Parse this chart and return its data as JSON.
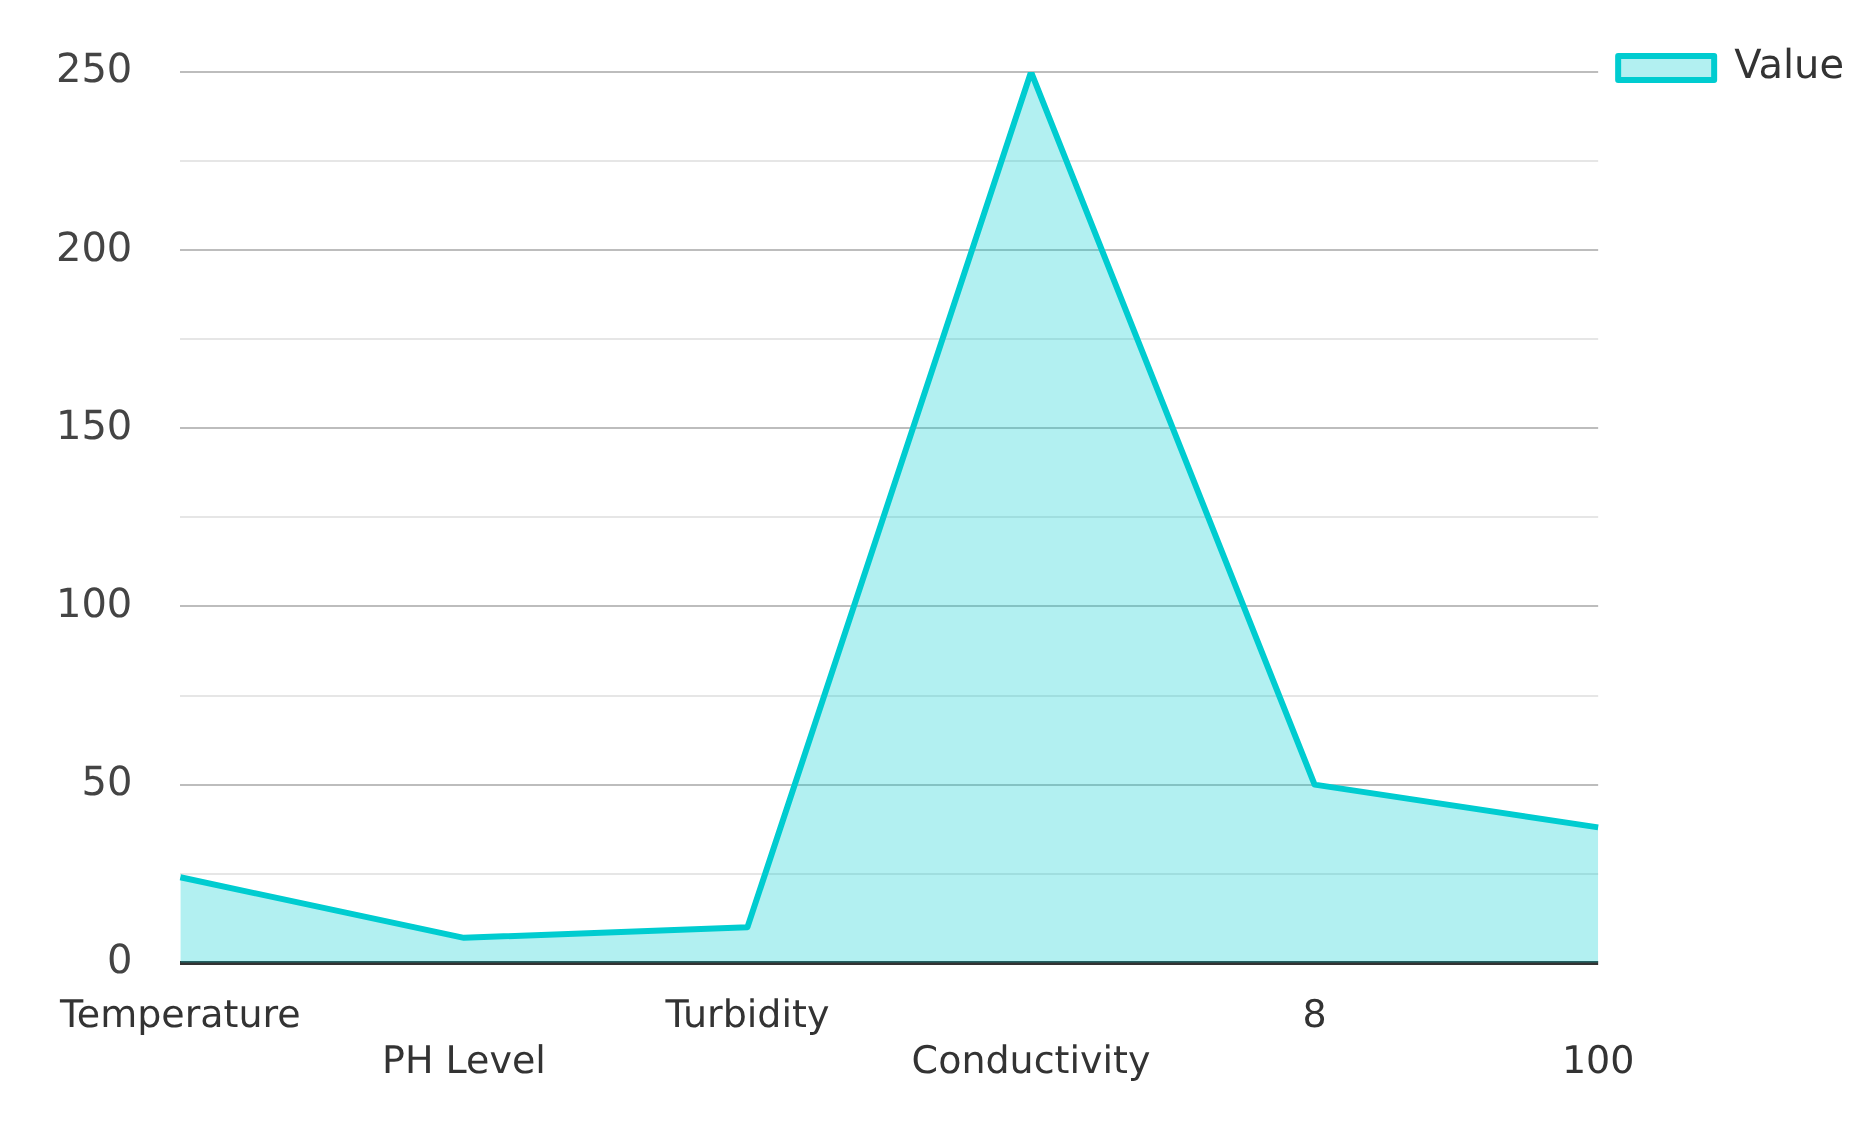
{
  "chart_data": {
    "type": "area",
    "categories": [
      "Temperature",
      "PH Level",
      "Turbidity",
      "Conductivity",
      "8",
      "100"
    ],
    "series": [
      {
        "name": "Value",
        "color": "#00ccd0",
        "values": [
          24,
          7,
          10,
          250,
          50,
          38
        ]
      }
    ],
    "ylim": [
      0,
      250
    ],
    "yticks": [
      0,
      {
        "value": 25,
        "label": null
      },
      50,
      {
        "value": 75,
        "label": null
      },
      100,
      {
        "value": 125,
        "label": null
      },
      150,
      {
        "value": 175,
        "label": null
      },
      200,
      {
        "value": 225,
        "label": null
      },
      250
    ],
    "grid": "y",
    "legend": "top right"
  }
}
